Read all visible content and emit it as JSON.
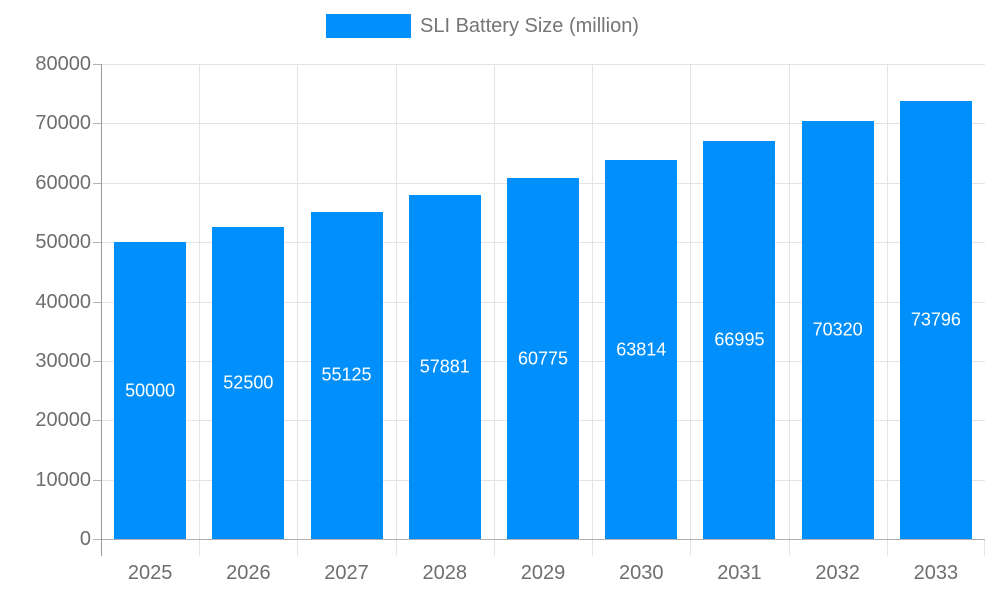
{
  "chart_data": {
    "type": "bar",
    "legend": "SLI Battery Size (million)",
    "legend_position": "top",
    "categories": [
      "2025",
      "2026",
      "2027",
      "2028",
      "2029",
      "2030",
      "2031",
      "2032",
      "2033"
    ],
    "values": [
      50000,
      52500,
      55125,
      57881,
      60775,
      63814,
      66995,
      70320,
      73796
    ],
    "bar_labels": [
      "50000",
      "52500",
      "55125",
      "57881",
      "60775",
      "63814",
      "66995",
      "70320",
      "73796"
    ],
    "ylim": [
      0,
      80000
    ],
    "ytick_step": 10000,
    "ytick_labels": [
      "0",
      "10000",
      "20000",
      "30000",
      "40000",
      "50000",
      "60000",
      "70000",
      "80000"
    ],
    "grid": true,
    "colors": {
      "bar": "#008ffb",
      "bar_label_text": "#ffffff",
      "axis_label_text": "#6e6e6e",
      "legend_text": "#757575",
      "gridline": "#e4e4e4",
      "axis_line": "#9b9b9b",
      "zero_line": "#b1b1b1",
      "tick": "#b3b3b3",
      "background": "#ffffff"
    }
  }
}
